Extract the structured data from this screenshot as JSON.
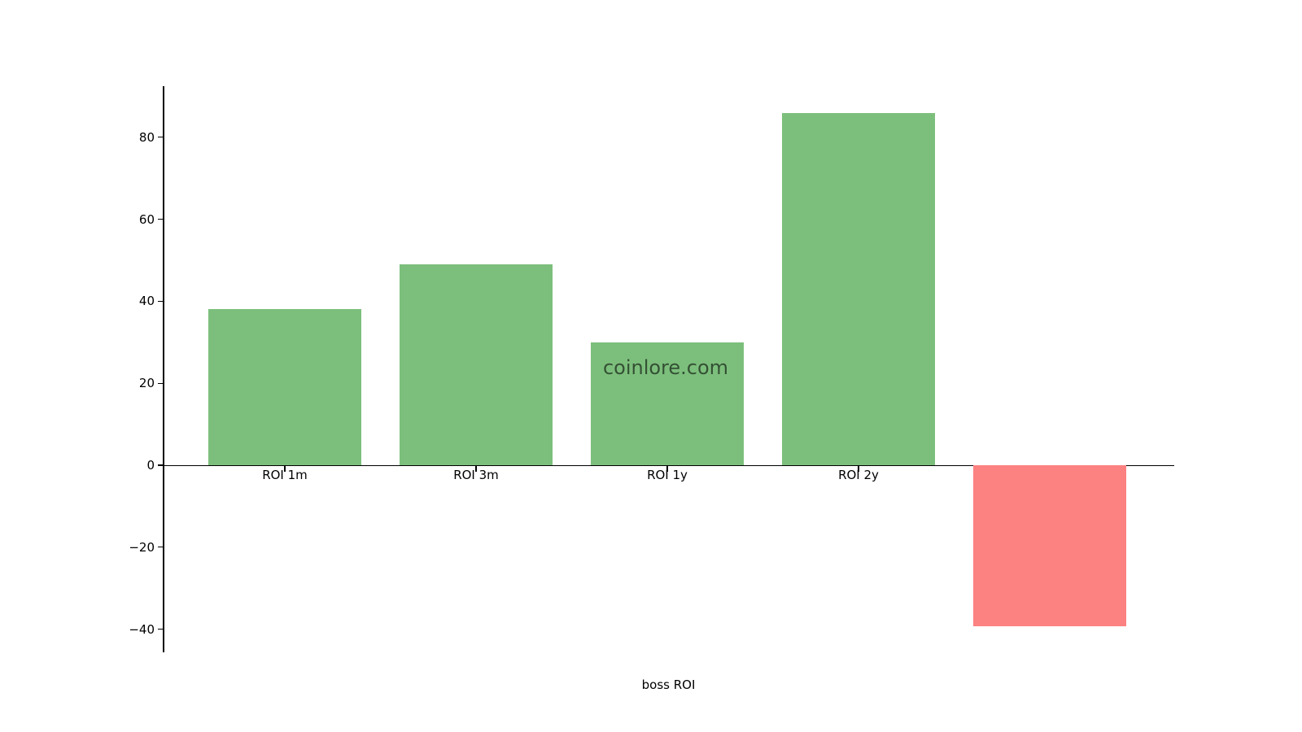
{
  "page": {
    "background": "#ffffff"
  },
  "watermark": {
    "text": "coinlore.com"
  },
  "chart_data": {
    "type": "bar",
    "title": "",
    "xlabel": "boss ROI",
    "ylabel": "",
    "categories": [
      "ROI 1m",
      "ROI 3m",
      "ROI 1y",
      "ROI 2y",
      ""
    ],
    "values": [
      38,
      49,
      30,
      86,
      -39
    ],
    "bar_colors": [
      "#7cbf7c",
      "#7cbf7c",
      "#7cbf7c",
      "#7cbf7c",
      "#fc8181"
    ],
    "positive_color": "#7cbf7c",
    "negative_color": "#fc8181",
    "axis_color": "#000000",
    "text_color": "#000000",
    "yticks": [
      {
        "value": 80,
        "label": "80"
      },
      {
        "value": 60,
        "label": "60"
      },
      {
        "value": 40,
        "label": "40"
      },
      {
        "value": 20,
        "label": "20"
      },
      {
        "value": 0,
        "label": "0"
      },
      {
        "value": -20,
        "label": "−20"
      },
      {
        "value": -40,
        "label": "−40"
      }
    ],
    "ylim": [
      -45.5,
      93
    ],
    "grid": false,
    "legend": null
  }
}
